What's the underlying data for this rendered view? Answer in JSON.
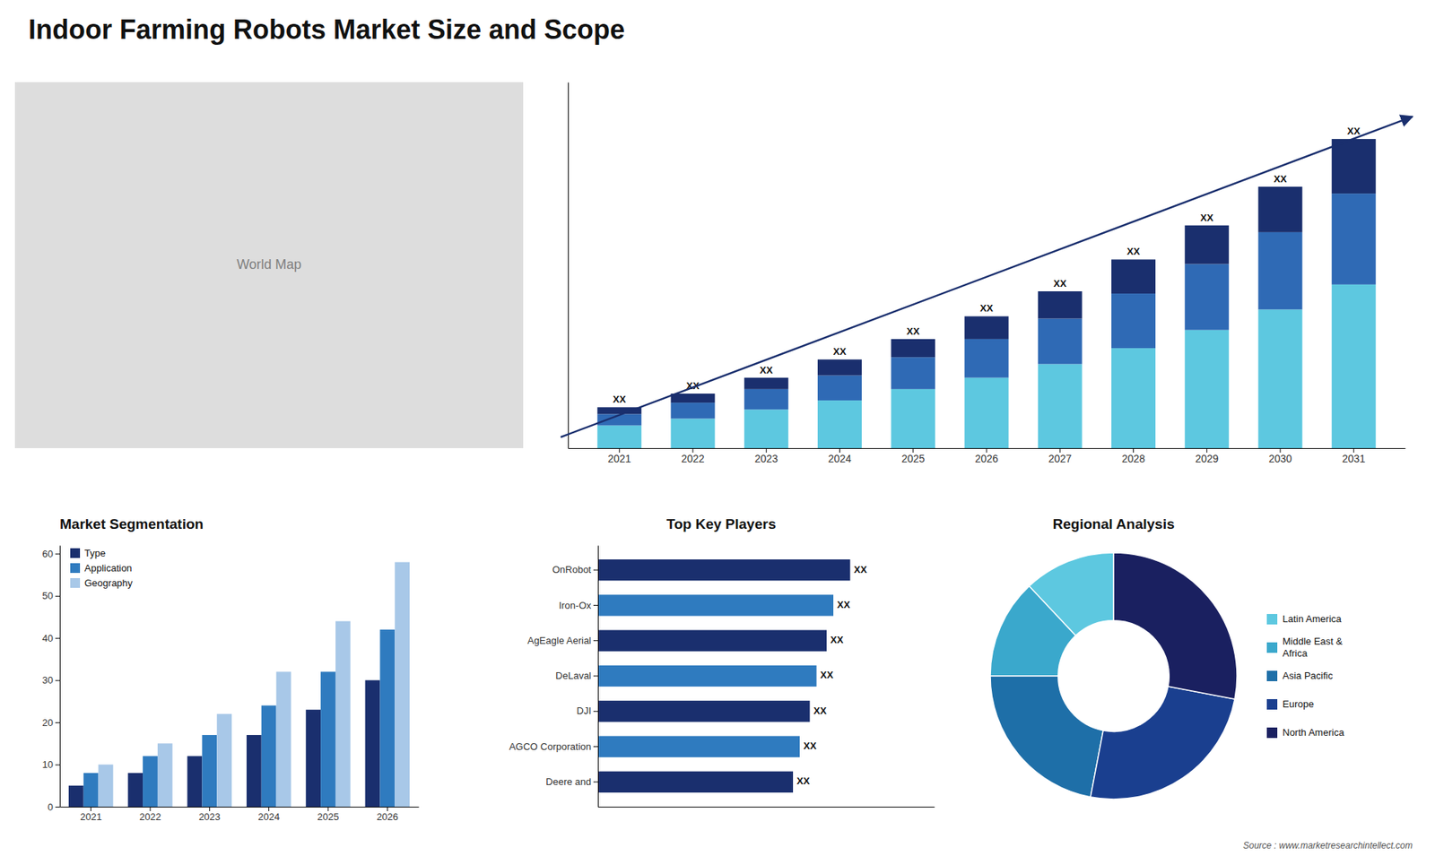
{
  "chart_data": [
    {
      "type": "bar",
      "title": "Indoor Farming Robots Market Size and Scope",
      "stacked": true,
      "categories": [
        "2021",
        "2022",
        "2023",
        "2024",
        "2025",
        "2026",
        "2027",
        "2028",
        "2029",
        "2030",
        "2031"
      ],
      "series": [
        {
          "color": "#5dc8e0",
          "values": [
            1,
            1.3,
            1.7,
            2.1,
            2.6,
            3.1,
            3.7,
            4.4,
            5.2,
            6.1,
            7.2
          ]
        },
        {
          "color": "#2f6ab5",
          "values": [
            0.5,
            0.7,
            0.9,
            1.1,
            1.4,
            1.7,
            2.0,
            2.4,
            2.9,
            3.4,
            4.0
          ]
        },
        {
          "color": "#1a2f6e",
          "values": [
            0.3,
            0.4,
            0.5,
            0.7,
            0.8,
            1.0,
            1.2,
            1.5,
            1.7,
            2.0,
            2.4
          ],
          "value_labels": [
            "XX",
            "XX",
            "XX",
            "XX",
            "XX",
            "XX",
            "XX",
            "XX",
            "XX",
            "XX",
            "XX"
          ]
        }
      ],
      "data_labels": true,
      "ylim": [
        0,
        16.1
      ],
      "tick_labels": "x",
      "annotations": [
        "World Map",
        "Source : www.marketresearchintellect.com"
      ]
    },
    {
      "type": "bar",
      "title": "Market Segmentation",
      "categories": [
        "2021",
        "2022",
        "2023",
        "2024",
        "2025",
        "2026"
      ],
      "series": [
        {
          "name": "Type",
          "color": "#1a2f6e",
          "values": [
            5,
            8,
            12,
            17,
            23,
            30
          ]
        },
        {
          "name": "Application",
          "color": "#2f7bbf",
          "values": [
            8,
            12,
            17,
            24,
            32,
            42
          ]
        },
        {
          "name": "Geography",
          "color": "#a8c8e8",
          "values": [
            10,
            15,
            22,
            32,
            44,
            58
          ]
        }
      ],
      "ylim": [
        0,
        62
      ],
      "yticks": [
        0,
        10,
        20,
        30,
        40,
        50,
        60
      ],
      "legend": "upper left"
    },
    {
      "type": "bar",
      "orientation": "horizontal",
      "title": "Top Key Players",
      "categories": [
        "OnRobot",
        "Iron-Ox",
        "AgEagle Aerial",
        "DeLaval",
        "DJI",
        "AGCO Corporation",
        "Deere and"
      ],
      "values": [
        7.5,
        7.0,
        6.8,
        6.5,
        6.3,
        6.0,
        5.8
      ],
      "colors": [
        "#1a2f6e",
        "#2f7bbf",
        "#1a2f6e",
        "#2f7bbf",
        "#1a2f6e",
        "#2f7bbf",
        "#1a2f6e"
      ],
      "value_labels": [
        "XX",
        "XX",
        "XX",
        "XX",
        "XX",
        "XX",
        "XX"
      ],
      "data_labels": true,
      "xlim": [
        0,
        10
      ],
      "tick_labels": "y"
    },
    {
      "type": "donut",
      "title": "Regional Analysis",
      "categories": [
        "Latin America",
        "Middle East &\nAfrica",
        "Asia Pacific",
        "Europe",
        "North America"
      ],
      "values": [
        12,
        13,
        22,
        25,
        28
      ],
      "colors": [
        "#5dc8e0",
        "#3aa8cc",
        "#1e6fa8",
        "#1a3f8f",
        "#1a2060"
      ],
      "legend": "right"
    }
  ]
}
